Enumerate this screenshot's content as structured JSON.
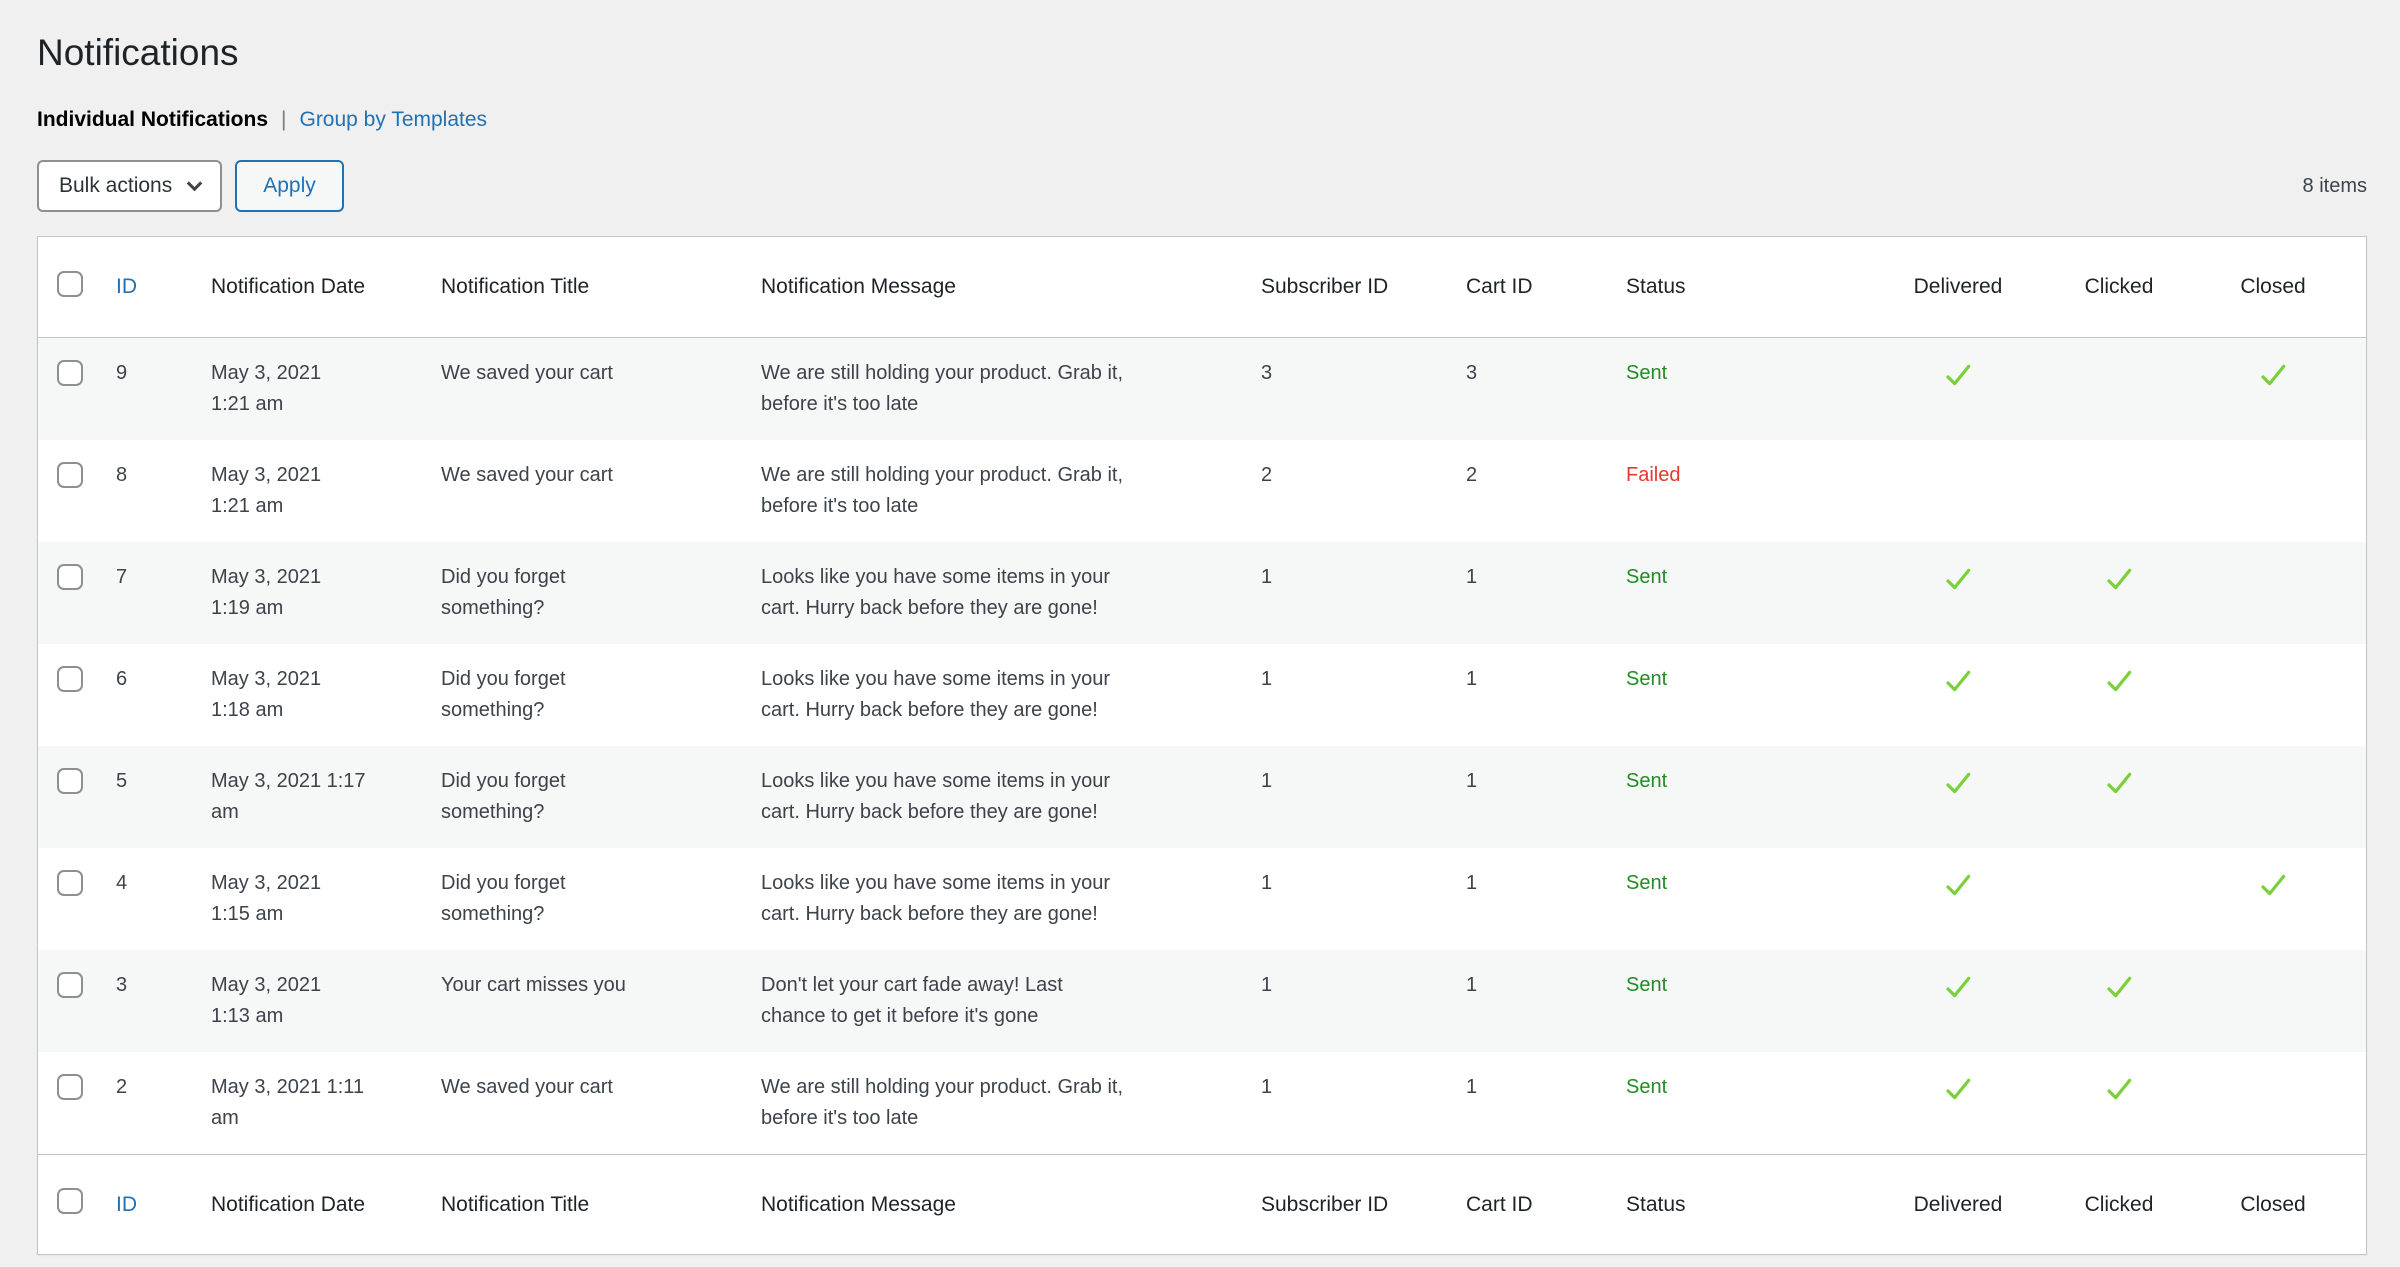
{
  "page": {
    "title": "Notifications",
    "items_count": "8 items"
  },
  "tabs": {
    "separator": "|",
    "items": [
      {
        "label": "Individual Notifications",
        "active": true
      },
      {
        "label": "Group by Templates",
        "active": false
      }
    ]
  },
  "toolbar": {
    "bulk_actions_label": "Bulk actions",
    "apply_label": "Apply"
  },
  "table": {
    "columns": [
      "ID",
      "Notification Date",
      "Notification Title",
      "Notification Message",
      "Subscriber ID",
      "Cart ID",
      "Status",
      "Delivered",
      "Clicked",
      "Closed"
    ],
    "rows": [
      {
        "id": "9",
        "date": "May 3, 2021\n1:21 am",
        "title": "We saved your cart",
        "message": "We are still holding your product. Grab it,\nbefore it's too late",
        "subscriber_id": "3",
        "cart_id": "3",
        "status": "Sent",
        "delivered": true,
        "clicked": false,
        "closed": true
      },
      {
        "id": "8",
        "date": "May 3, 2021\n1:21 am",
        "title": "We saved your cart",
        "message": "We are still holding your product. Grab it,\nbefore it's too late",
        "subscriber_id": "2",
        "cart_id": "2",
        "status": "Failed",
        "delivered": false,
        "clicked": false,
        "closed": false
      },
      {
        "id": "7",
        "date": "May 3, 2021\n1:19 am",
        "title": "Did you forget\nsomething?",
        "message": "Looks like you have some items in your\ncart. Hurry back before they are gone!",
        "subscriber_id": "1",
        "cart_id": "1",
        "status": "Sent",
        "delivered": true,
        "clicked": true,
        "closed": false
      },
      {
        "id": "6",
        "date": "May 3, 2021\n1:18 am",
        "title": "Did you forget\nsomething?",
        "message": "Looks like you have some items in your\ncart. Hurry back before they are gone!",
        "subscriber_id": "1",
        "cart_id": "1",
        "status": "Sent",
        "delivered": true,
        "clicked": true,
        "closed": false
      },
      {
        "id": "5",
        "date": "May 3, 2021 1:17\nam",
        "title": "Did you forget\nsomething?",
        "message": "Looks like you have some items in your\ncart. Hurry back before they are gone!",
        "subscriber_id": "1",
        "cart_id": "1",
        "status": "Sent",
        "delivered": true,
        "clicked": true,
        "closed": false
      },
      {
        "id": "4",
        "date": "May 3, 2021\n1:15 am",
        "title": "Did you forget\nsomething?",
        "message": "Looks like you have some items in your\ncart. Hurry back before they are gone!",
        "subscriber_id": "1",
        "cart_id": "1",
        "status": "Sent",
        "delivered": true,
        "clicked": false,
        "closed": true
      },
      {
        "id": "3",
        "date": "May 3, 2021\n1:13 am",
        "title": "Your cart misses you",
        "message": "Don't let your cart fade away! Last\nchance to get it before it's gone",
        "subscriber_id": "1",
        "cart_id": "1",
        "status": "Sent",
        "delivered": true,
        "clicked": true,
        "closed": false
      },
      {
        "id": "2",
        "date": "May 3, 2021 1:11\nam",
        "title": "We saved your cart",
        "message": "We are still holding your product. Grab it,\nbefore it's too late",
        "subscriber_id": "1",
        "cart_id": "1",
        "status": "Sent",
        "delivered": true,
        "clicked": true,
        "closed": false
      }
    ]
  },
  "icons": {
    "check": "✓",
    "chevron_down": "⌄"
  },
  "colors": {
    "page_bg": "#f0f0f1",
    "link_blue": "#2271b1",
    "table_border": "#c3c4c7",
    "stripe": "#f6f7f7",
    "check_green": "#7ad03a",
    "status": {
      "Sent": "#228b22",
      "Failed": "#e5392b"
    }
  }
}
